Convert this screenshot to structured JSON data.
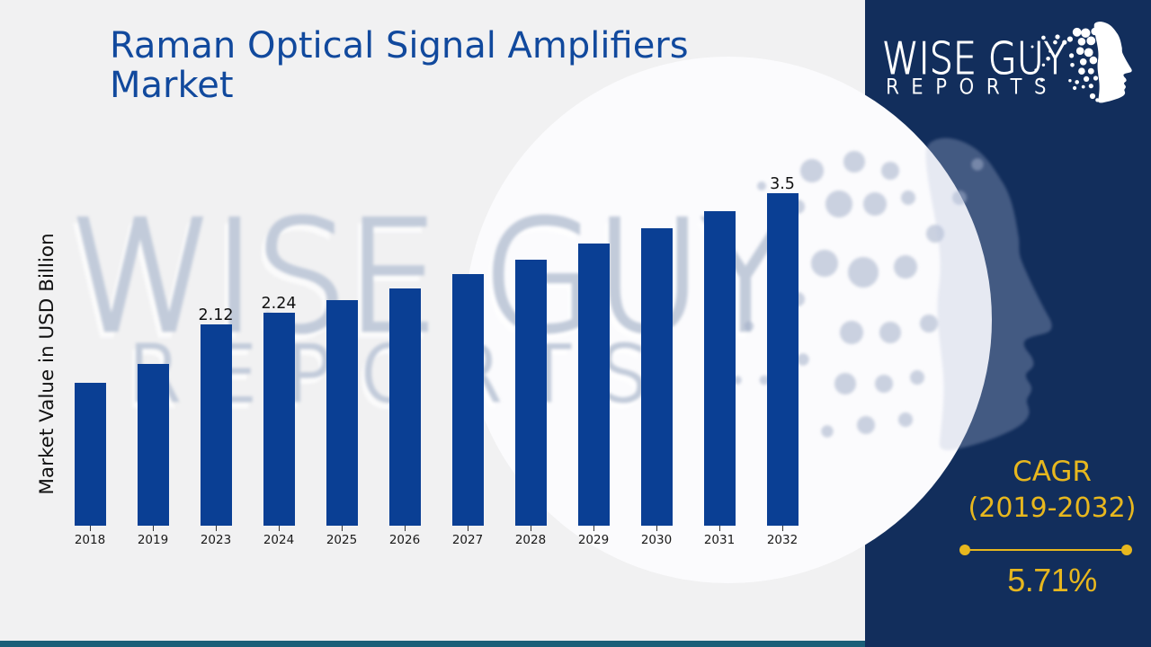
{
  "title": "Raman Optical Signal Amplifiers Market",
  "y_axis_label": "Market Value in USD Billion",
  "brand": {
    "name_main": "WISE GUY",
    "name_sub": "REPORTS"
  },
  "watermark": {
    "text_main": "WISE GUY",
    "text_sub": "REPORTS"
  },
  "cagr": {
    "label_line1": "CAGR",
    "label_line2": "(2019-2032)",
    "value": "5.71%"
  },
  "chart_data": {
    "type": "bar",
    "categories": [
      "2018",
      "2019",
      "2023",
      "2024",
      "2025",
      "2026",
      "2027",
      "2028",
      "2029",
      "2030",
      "2031",
      "2032"
    ],
    "values": [
      1.5,
      1.7,
      2.12,
      2.24,
      2.37,
      2.5,
      2.65,
      2.8,
      2.97,
      3.13,
      3.31,
      3.5
    ],
    "bar_labels": [
      "",
      "",
      "2.12",
      "2.24",
      "",
      "",
      "",
      "",
      "",
      "",
      "",
      "3.5"
    ],
    "title": "Raman Optical Signal Amplifiers Market",
    "xlabel": "",
    "ylabel": "Market Value in USD Billion",
    "ylim": [
      0,
      3.8
    ],
    "grid": false,
    "legend": false
  },
  "colors": {
    "background": "#f1f1f2",
    "bar": "#0a3f94",
    "title_text": "#11499d",
    "panel_navy": "#122e5c",
    "accent_yellow": "#e7b71e",
    "footer_teal": "#1a5f78"
  }
}
